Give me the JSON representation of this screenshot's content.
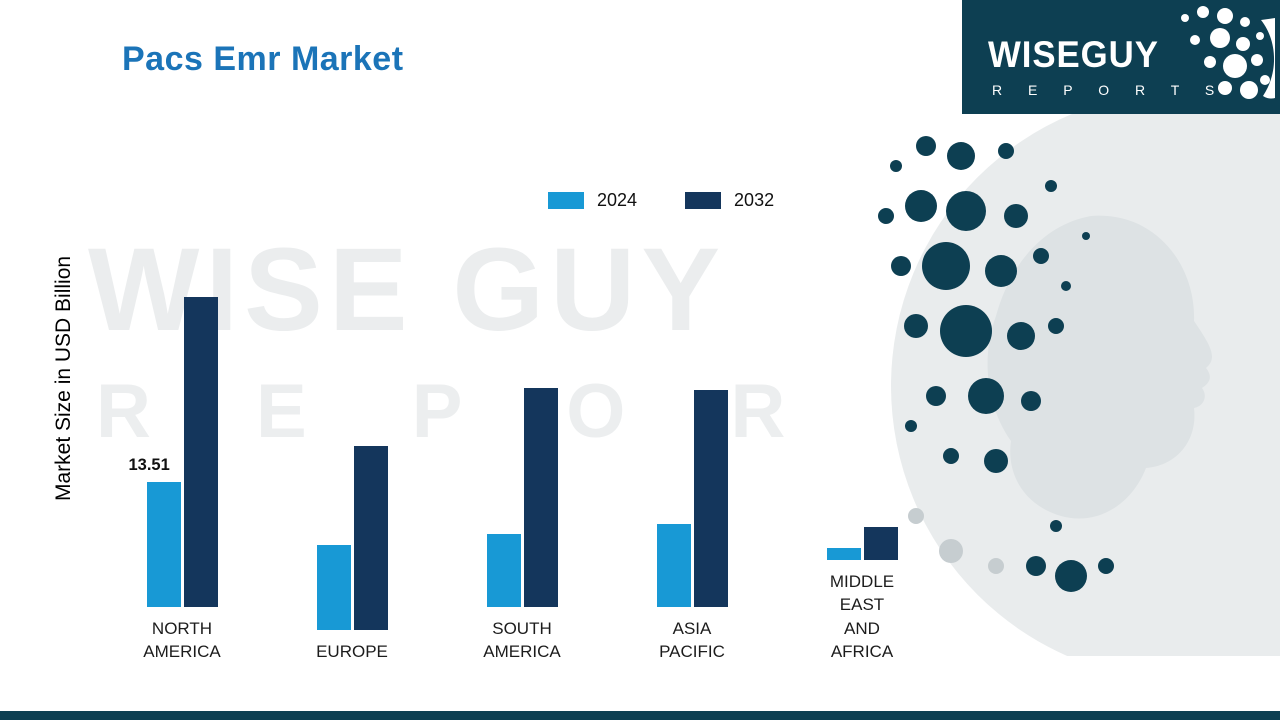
{
  "page": {
    "title": "Pacs Emr Market"
  },
  "brand": {
    "name": "WISEGUY",
    "subtitle": "R E P O R T S"
  },
  "watermark": {
    "line1": "WISE GUY",
    "line2": "R E P O R T S"
  },
  "colors": {
    "accent_blue": "#1899d5",
    "navy": "#14365c",
    "teal_dark": "#0d3f52",
    "title_blue": "#1b74b8"
  },
  "chart_data": {
    "type": "bar",
    "title": "Pacs Emr Market",
    "xlabel": "",
    "ylabel": "Market Size in USD Billion",
    "categories": [
      "NORTH\nAMERICA",
      "EUROPE",
      "SOUTH\nAMERICA",
      "ASIA\nPACIFIC",
      "MIDDLE\nEAST\nAND\nAFRICA"
    ],
    "series": [
      {
        "name": "2024",
        "color": "#1899d5",
        "values": [
          13.51,
          9.2,
          7.9,
          9.0,
          1.3
        ]
      },
      {
        "name": "2032",
        "color": "#14365c",
        "values": [
          33.6,
          20.0,
          23.7,
          23.5,
          3.6
        ]
      }
    ],
    "ylim": [
      0,
      36
    ],
    "annotations": [
      {
        "category": "NORTH\nAMERICA",
        "series": "2024",
        "text": "13.51"
      }
    ],
    "legend_position": "top",
    "grid": false
  }
}
